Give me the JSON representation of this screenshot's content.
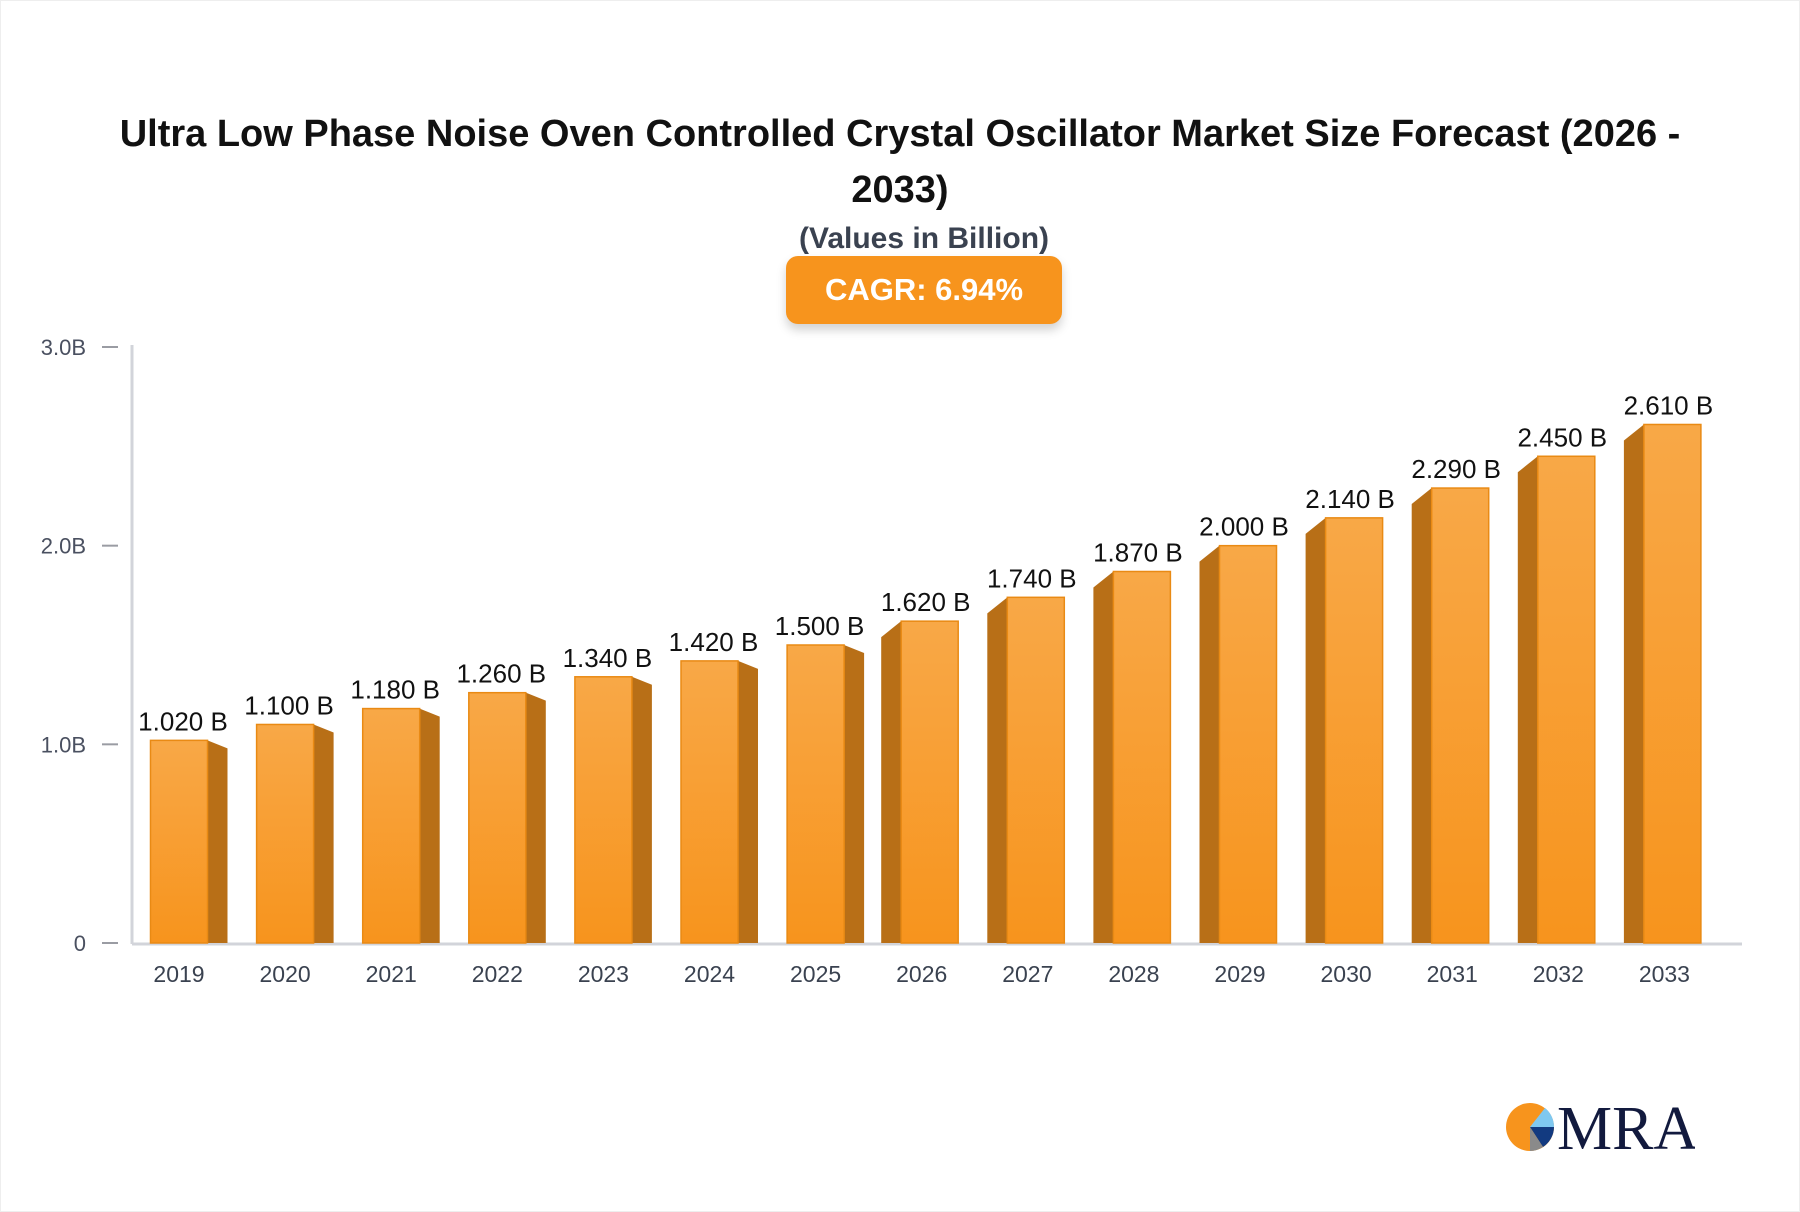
{
  "chart_data": {
    "type": "bar",
    "title": "Ultra Low Phase Noise Oven Controlled Crystal Oscillator Market Size Forecast (2026 - 2033)",
    "subtitle": "(Values in Billion)",
    "badge": "CAGR: 6.94%",
    "categories": [
      "2019",
      "2020",
      "2021",
      "2022",
      "2023",
      "2024",
      "2025",
      "2026",
      "2027",
      "2028",
      "2029",
      "2030",
      "2031",
      "2032",
      "2033"
    ],
    "values": [
      1.02,
      1.1,
      1.18,
      1.26,
      1.34,
      1.42,
      1.5,
      1.62,
      1.74,
      1.87,
      2.0,
      2.14,
      2.29,
      2.45,
      2.61
    ],
    "data_labels": [
      "1.020 B",
      "1.100 B",
      "1.180 B",
      "1.260 B",
      "1.340 B",
      "1.420 B",
      "1.500 B",
      "1.620 B",
      "1.740 B",
      "1.870 B",
      "2.000 B",
      "2.140 B",
      "2.290 B",
      "2.450 B",
      "2.610 B"
    ],
    "yticks": [
      0,
      1,
      2,
      3
    ],
    "ytick_labels": [
      "0",
      "1.0B",
      "2.0B",
      "3.0B"
    ],
    "ylim": [
      0,
      3
    ],
    "grid": false,
    "colors": {
      "bar_front": "#f7941d",
      "bar_top": "#f9ab4f",
      "bar_side": "#b86f17",
      "badge": "#f7941d"
    }
  },
  "logo": {
    "text": "MRA"
  }
}
